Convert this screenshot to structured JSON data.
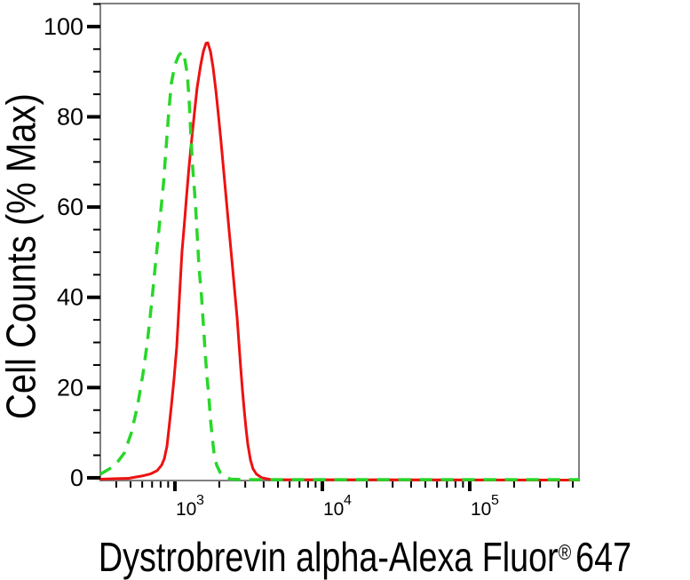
{
  "figure": {
    "background": "#ffffff",
    "frame_color": "#808080",
    "tick_color": "#000000",
    "text_color": "#000000"
  },
  "chart_data": {
    "type": "line",
    "subtype": "flow-cytometry-histogram",
    "title": "",
    "xlabel": "Dystrobrevin alpha-Alexa Fluor® 647",
    "xlabel_parts": {
      "main": "Dystrobrevin alpha-Alexa Fluor",
      "registered_mark": "®",
      "suffix": "647"
    },
    "ylabel": "Cell Counts (% Max)",
    "x_scale": "log",
    "xlim": [
      312,
      551000
    ],
    "ylim": [
      -0.6,
      105.1
    ],
    "grid": false,
    "legend": "none",
    "x_major_ticks": [
      {
        "value": 1000,
        "label_base": "10",
        "label_exp": "3"
      },
      {
        "value": 10000,
        "label_base": "10",
        "label_exp": "4"
      },
      {
        "value": 100000,
        "label_base": "10",
        "label_exp": "5"
      }
    ],
    "x_minor_ticks": [
      400,
      500,
      600,
      700,
      800,
      900,
      2000,
      3000,
      4000,
      5000,
      6000,
      7000,
      8000,
      9000,
      20000,
      30000,
      40000,
      50000,
      60000,
      70000,
      80000,
      90000,
      200000,
      300000,
      400000,
      500000
    ],
    "y_major_ticks": [
      0,
      20,
      40,
      60,
      80,
      100
    ],
    "y_minor_step": 5,
    "series": [
      {
        "name": "red-solid-curve",
        "style": "solid",
        "color": "#ee1111",
        "width": 3,
        "dash": null,
        "peak_x": 1650,
        "peak_y": 96.5,
        "x": [
          312,
          486,
          598,
          687,
          758,
          812,
          847,
          883,
          908,
          946,
          986,
          1028,
          1057,
          1086,
          1117,
          1164,
          1197,
          1248,
          1300,
          1357,
          1416,
          1496,
          1560,
          1626,
          1671,
          1742,
          1815,
          1893,
          1972,
          2056,
          2143,
          2234,
          2328,
          2431,
          2535,
          2642,
          2716,
          2793,
          2871,
          2951,
          3034,
          3119,
          3251,
          3388,
          3581,
          3890,
          4500,
          551000
        ],
        "y": [
          -0.3,
          -0.1,
          0.4,
          0.9,
          1.6,
          2.8,
          4.2,
          7,
          10.5,
          16,
          22,
          29,
          36,
          43,
          50,
          57,
          62,
          69,
          75,
          81,
          86.5,
          91.5,
          94.5,
          96.3,
          96.4,
          94.5,
          91,
          86,
          80.5,
          74.5,
          68,
          61.5,
          55,
          48.5,
          42,
          35.5,
          30,
          24.5,
          19.5,
          15,
          11,
          7.5,
          4,
          2,
          0.8,
          0,
          -0.4,
          -0.5
        ]
      },
      {
        "name": "green-dashed-curve",
        "style": "dashed",
        "color": "#28d728",
        "width": 3.5,
        "dash": [
          14,
          10
        ],
        "peak_x": 1117,
        "peak_y": 94.5,
        "x": [
          312,
          344,
          394,
          454,
          507,
          558,
          607,
          650,
          697,
          747,
          790,
          835,
          871,
          908,
          946,
          1000,
          1057,
          1117,
          1164,
          1213,
          1248,
          1283,
          1318,
          1377,
          1416,
          1455,
          1517,
          1560,
          1604,
          1648,
          1694,
          1742,
          1791,
          1841,
          1919,
          2028,
          2173,
          2399,
          3000,
          551000
        ],
        "y": [
          0.8,
          1.6,
          2.8,
          5.5,
          10,
          16,
          23,
          30,
          39,
          49,
          57,
          65,
          73,
          81,
          87.5,
          91.5,
          93.5,
          94.5,
          93,
          89.5,
          84,
          76,
          69,
          61,
          54,
          47,
          40,
          34,
          28,
          22.5,
          18.5,
          13,
          9,
          5.5,
          2.8,
          1.2,
          0.2,
          -0.3,
          -0.4,
          -0.4
        ]
      }
    ]
  }
}
